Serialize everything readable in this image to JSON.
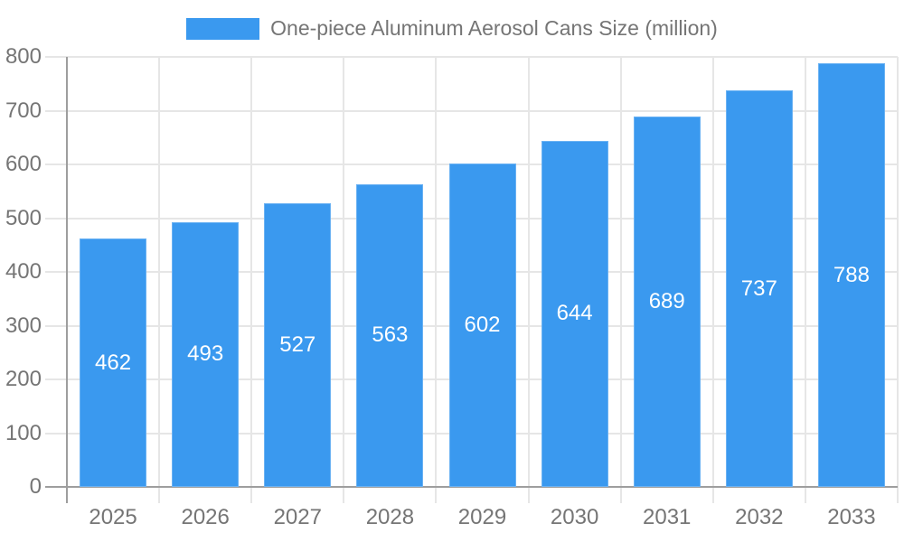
{
  "legend": {
    "label": "One-piece Aluminum Aerosol Cans Size (million)"
  },
  "chart_data": {
    "type": "bar",
    "title": "One-piece Aluminum Aerosol Cans Size (million)",
    "categories": [
      "2025",
      "2026",
      "2027",
      "2028",
      "2029",
      "2030",
      "2031",
      "2032",
      "2033"
    ],
    "values": [
      462,
      493,
      527,
      563,
      602,
      644,
      689,
      737,
      788
    ],
    "xlabel": "",
    "ylabel": "",
    "ylim": [
      0,
      800
    ],
    "ytick_interval": 100,
    "yticks": [
      0,
      100,
      200,
      300,
      400,
      500,
      600,
      700,
      800
    ],
    "grid": true,
    "legend_position": "top",
    "value_labels": "inside-middle",
    "colors": {
      "bar": "#3a99ef",
      "value_label": "#ffffff",
      "axis_line": "#9e9e9e",
      "grid_line": "#e6e6e6",
      "axis_text": "#757575"
    }
  }
}
